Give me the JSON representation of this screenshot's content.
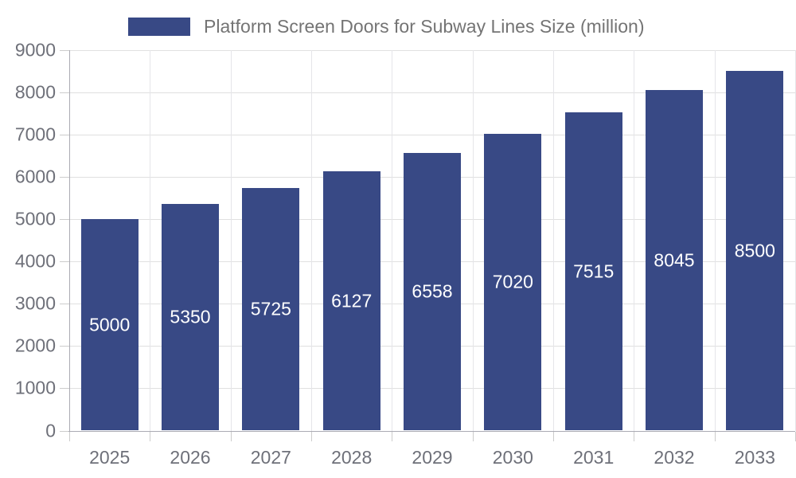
{
  "chart_data": {
    "type": "bar",
    "title": "Platform Screen Doors for Subway Lines Size (million)",
    "legend_entries": [
      "Platform Screen Doors for Subway Lines Size (million)"
    ],
    "legend_position": "top",
    "categories": [
      "2025",
      "2026",
      "2027",
      "2028",
      "2029",
      "2030",
      "2031",
      "2032",
      "2033"
    ],
    "series": [
      {
        "name": "Platform Screen Doors for Subway Lines Size (million)",
        "values": [
          5000,
          5350,
          5725,
          6127,
          6558,
          7020,
          7515,
          8045,
          8500
        ]
      }
    ],
    "bar_labels": [
      "5000",
      "5350",
      "5725",
      "6127",
      "6558",
      "7020",
      "7515",
      "8045",
      "8500"
    ],
    "bar_label_position": "inside-center",
    "xlabel": "",
    "ylabel": "",
    "ylim": [
      0,
      9000
    ],
    "y_ticks": [
      0,
      1000,
      2000,
      3000,
      4000,
      5000,
      6000,
      7000,
      8000,
      9000
    ],
    "grid": true,
    "colors": {
      "bar": "#384985",
      "bar_label": "#ffffff",
      "axis_text": "#6E7079",
      "legend_text": "#747474",
      "axis_line": "#ABABB3",
      "tick_line": "#CCCCCC",
      "grid_line_h": "#E0E0E0",
      "grid_line_v": "#E5E5E9",
      "background": "#ffffff"
    }
  }
}
